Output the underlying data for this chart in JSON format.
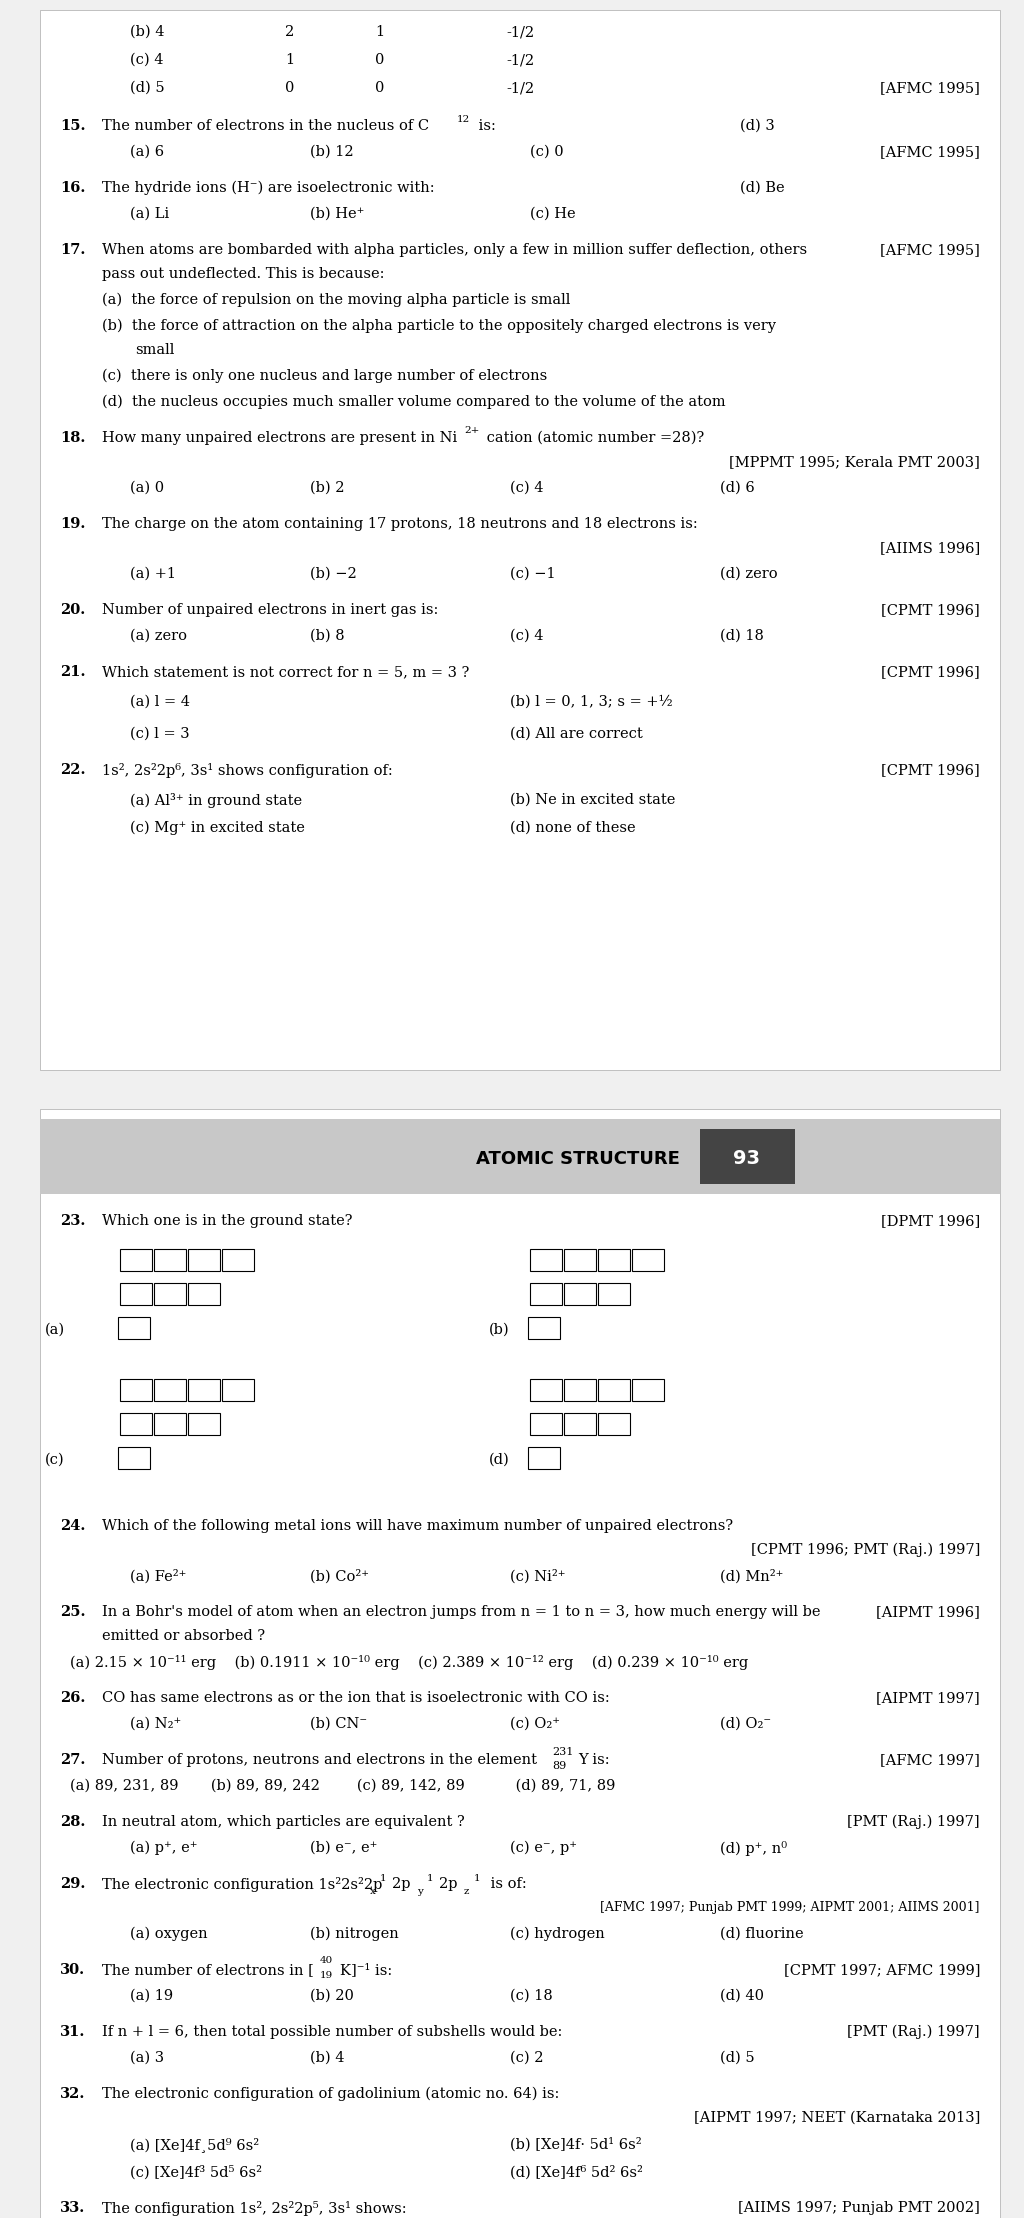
{
  "page_bg": "#f0f0f0",
  "white": "#ffffff",
  "black": "#000000"
}
